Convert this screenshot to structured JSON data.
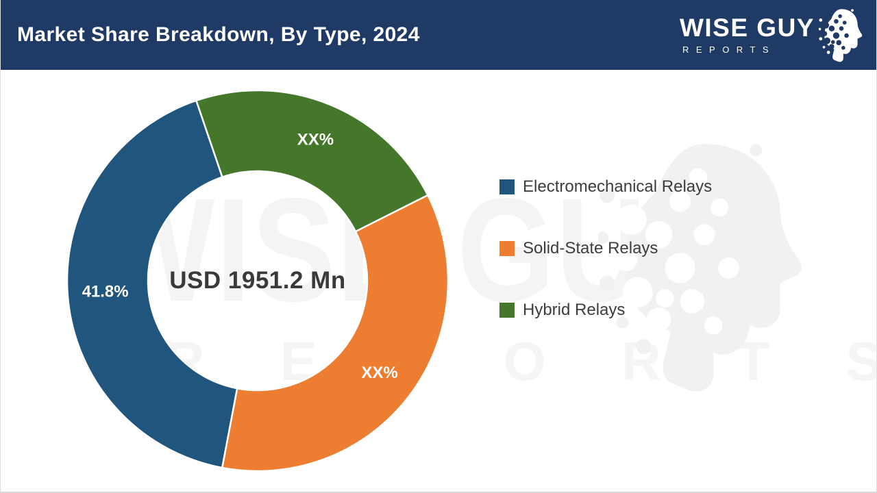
{
  "header": {
    "title": "Market Share Breakdown, By Type, 2024",
    "logo": {
      "wordmark": "WISE GUY",
      "subtext": "REPORTS"
    }
  },
  "watermark": {
    "wordmark": "WISE GUY",
    "subtext": "R E P O R T S"
  },
  "chart_data": {
    "type": "pie",
    "variant": "donut",
    "title": "Market Share Breakdown, By Type, 2024",
    "center_label": "USD 1951.2 Mn",
    "start_angle_deg_cw_from_top": -18.8,
    "inner_radius_ratio": 0.575,
    "legend_position": "right",
    "segments": [
      {
        "name": "Electromechanical Relays",
        "label": "41.8%",
        "value_pct": 41.8,
        "color": "#20557d"
      },
      {
        "name": "Solid-State Relays",
        "label": "XX%",
        "value_pct": 35.4,
        "color": "#ed7d31"
      },
      {
        "name": "Hybrid Relays",
        "label": "XX%",
        "value_pct": 22.8,
        "color": "#45772a"
      }
    ]
  },
  "colors": {
    "header_bg": "#1f3a64",
    "body_bg": "#ffffff",
    "watermark": "#f2f2f2",
    "legend_text": "#3d3d3d",
    "center_text": "#3a3a3a",
    "slice_label": "#ffffff",
    "border": "#d9d9d9"
  }
}
